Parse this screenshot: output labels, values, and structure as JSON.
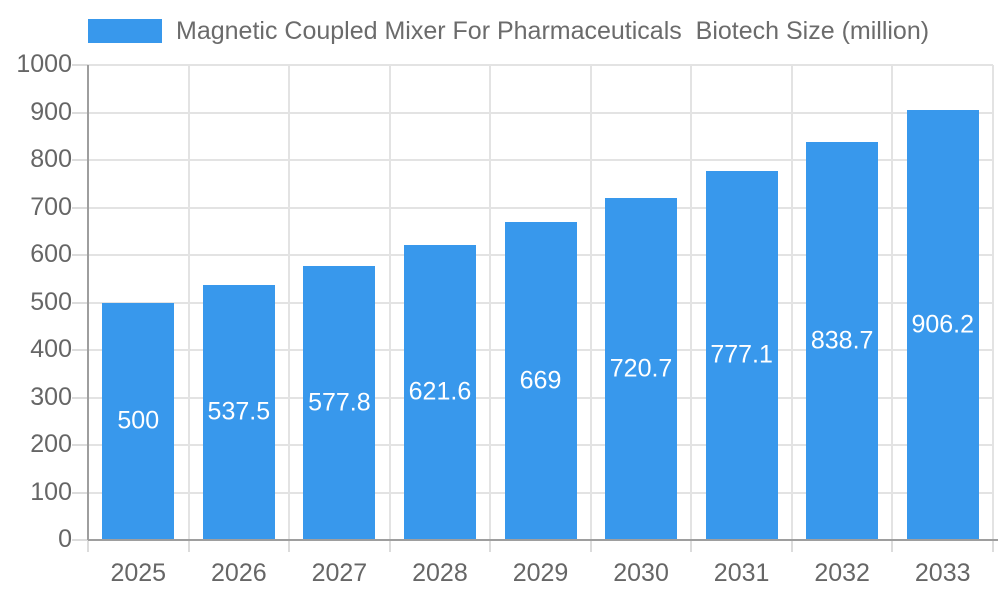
{
  "chart_data": {
    "type": "bar",
    "legend": "Magnetic Coupled Mixer For Pharmaceuticals  Biotech Size (million)",
    "legend_position": "top",
    "categories": [
      "2025",
      "2026",
      "2027",
      "2028",
      "2029",
      "2030",
      "2031",
      "2032",
      "2033"
    ],
    "values": [
      500,
      537.5,
      577.8,
      621.6,
      669,
      720.7,
      777.1,
      838.7,
      906.2
    ],
    "value_labels": [
      "500",
      "537.5",
      "577.8",
      "621.6",
      "669",
      "720.7",
      "777.1",
      "838.7",
      "906.2"
    ],
    "xlabel": "",
    "ylabel": "",
    "ylim": [
      0,
      1000
    ],
    "yticks": [
      0,
      100,
      200,
      300,
      400,
      500,
      600,
      700,
      800,
      900,
      1000
    ],
    "grid": true
  },
  "colors": {
    "bar": "#3898ec",
    "grid": "#e3e3e3",
    "tick": "#dcdcdc",
    "axis": "#9e9e9e",
    "tick_label": "#666666",
    "legend_text": "#6b6b6b",
    "value_label": "#ffffff",
    "background": "#ffffff"
  }
}
